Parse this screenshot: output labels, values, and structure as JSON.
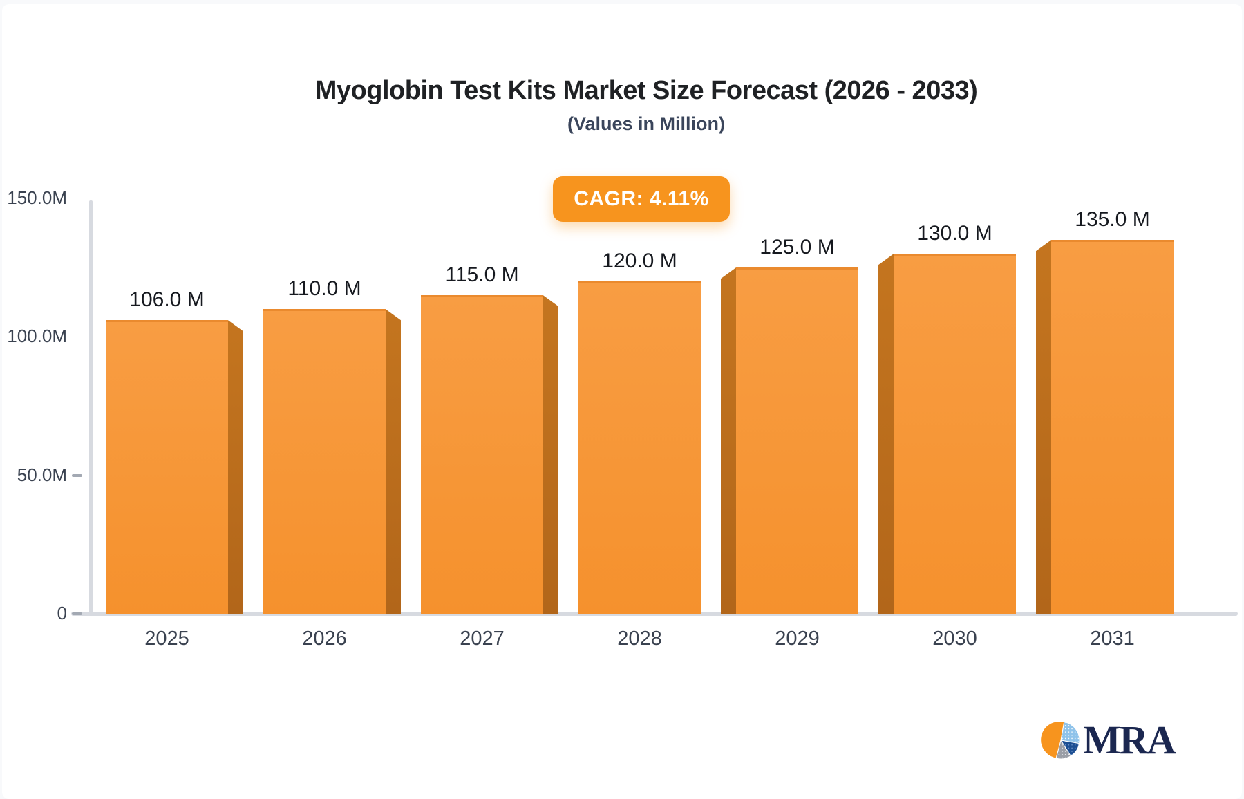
{
  "header": {
    "title": "Myoglobin Test Kits Market Size Forecast (2026 - 2033)",
    "subtitle": "(Values in Million)"
  },
  "badge": {
    "label": "CAGR: 4.11%"
  },
  "logo": {
    "text": "MRA",
    "icon": "pie-chart-logo-icon"
  },
  "chart_data": {
    "type": "bar",
    "title": "Myoglobin Test Kits Market Size Forecast (2026 - 2033)",
    "subtitle": "(Values in Million)",
    "annotation": "CAGR: 4.11%",
    "categories": [
      "2025",
      "2026",
      "2027",
      "2028",
      "2029",
      "2030",
      "2031"
    ],
    "values": [
      106.0,
      110.0,
      115.0,
      120.0,
      125.0,
      130.0,
      135.0
    ],
    "bar_labels": [
      "106.0 M",
      "110.0 M",
      "115.0 M",
      "120.0 M",
      "125.0 M",
      "130.0 M",
      "135.0 M"
    ],
    "xlabel": "",
    "ylabel": "",
    "ylim": [
      0,
      150
    ],
    "yticks": [
      {
        "v": 0,
        "label": "0",
        "dash": true
      },
      {
        "v": 50,
        "label": "50.0M",
        "dash": true
      },
      {
        "v": 100,
        "label": "100.0M",
        "dash": false
      },
      {
        "v": 150,
        "label": "150.0M",
        "dash": false
      }
    ],
    "grid": false,
    "legend": false,
    "colors": {
      "bar-top": "#f89d43",
      "bar-bottom": "#f5912d",
      "bar-edge": "#ea8a2e",
      "bar-side": "#b2661a",
      "axis": "#d7dae0",
      "tick": "#a3a9b3",
      "badge-bg": "#f7941e",
      "badge-text": "#ffffff",
      "title": "#1f2124",
      "subtitle": "#3a455b",
      "value-label": "#16191f",
      "axis-label": "#3a4250",
      "logo-navy": "#1b2750",
      "logo-orange": "#f7941e",
      "logo-lightblue": "#8fc3ea",
      "logo-blue": "#1d4f92",
      "logo-gray": "#9a9ea6"
    }
  }
}
